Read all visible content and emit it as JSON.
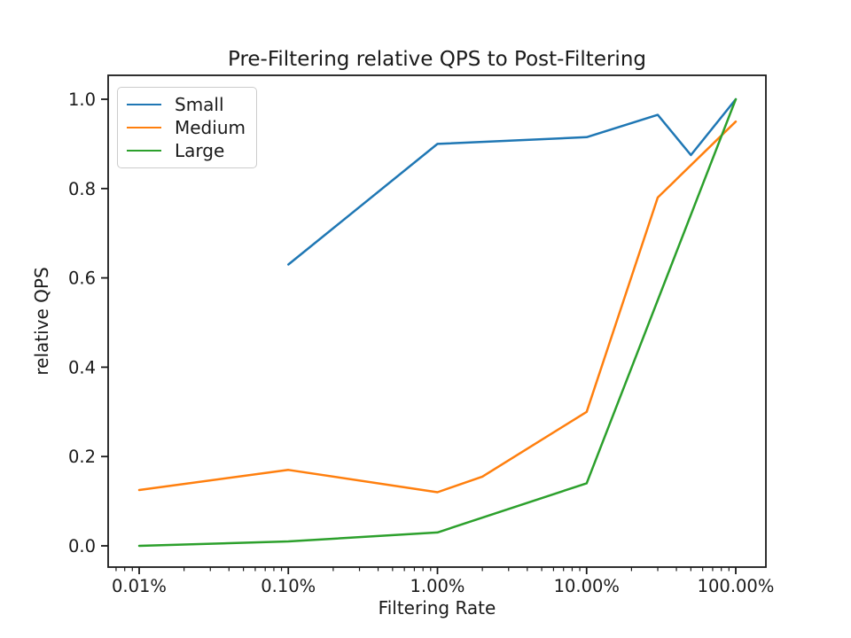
{
  "figure": {
    "title": "Pre-Filtering relative QPS to Post-Filtering",
    "xlabel": "Filtering Rate",
    "ylabel": "relative QPS"
  },
  "colors": {
    "small": "#1f77b4",
    "medium": "#ff7f0e",
    "large": "#2ca02c",
    "text": "#1a1a1a",
    "spine": "#1a1a1a",
    "legend_border": "#cccccc"
  },
  "chart_data": {
    "type": "line",
    "title": "Pre-Filtering relative QPS to Post-Filtering",
    "xlabel": "Filtering Rate",
    "ylabel": "relative QPS",
    "x_axis": {
      "scale": "log",
      "unit": "percent",
      "tick_values_percent": [
        0.01,
        0.1,
        1,
        10,
        100
      ],
      "tick_labels": [
        "0.01%",
        "0.10%",
        "1.00%",
        "10.00%",
        "100.00%"
      ],
      "range_percent": [
        0.0062,
        161
      ],
      "minor_ticks": true
    },
    "y_axis": {
      "ticks": [
        0.0,
        0.2,
        0.4,
        0.6,
        0.8,
        1.0
      ],
      "tick_labels": [
        "0.0",
        "0.2",
        "0.4",
        "0.6",
        "0.8",
        "1.0"
      ],
      "range": [
        -0.048,
        1.053
      ],
      "minor_ticks": false
    },
    "grid": false,
    "legend": {
      "position": "upper left",
      "entries": [
        "Small",
        "Medium",
        "Large"
      ]
    },
    "series": [
      {
        "name": "Small",
        "color": "#1f77b4",
        "x_percent": [
          0.1,
          1,
          10,
          30,
          50,
          100
        ],
        "y": [
          0.63,
          0.9,
          0.915,
          0.965,
          0.875,
          1.0
        ]
      },
      {
        "name": "Medium",
        "color": "#ff7f0e",
        "x_percent": [
          0.01,
          0.1,
          1,
          2,
          10,
          30,
          100
        ],
        "y": [
          0.125,
          0.17,
          0.12,
          0.155,
          0.3,
          0.78,
          0.95
        ]
      },
      {
        "name": "Large",
        "color": "#2ca02c",
        "x_percent": [
          0.01,
          0.1,
          1,
          10,
          100
        ],
        "y": [
          0.0,
          0.01,
          0.03,
          0.14,
          1.0
        ]
      }
    ]
  }
}
